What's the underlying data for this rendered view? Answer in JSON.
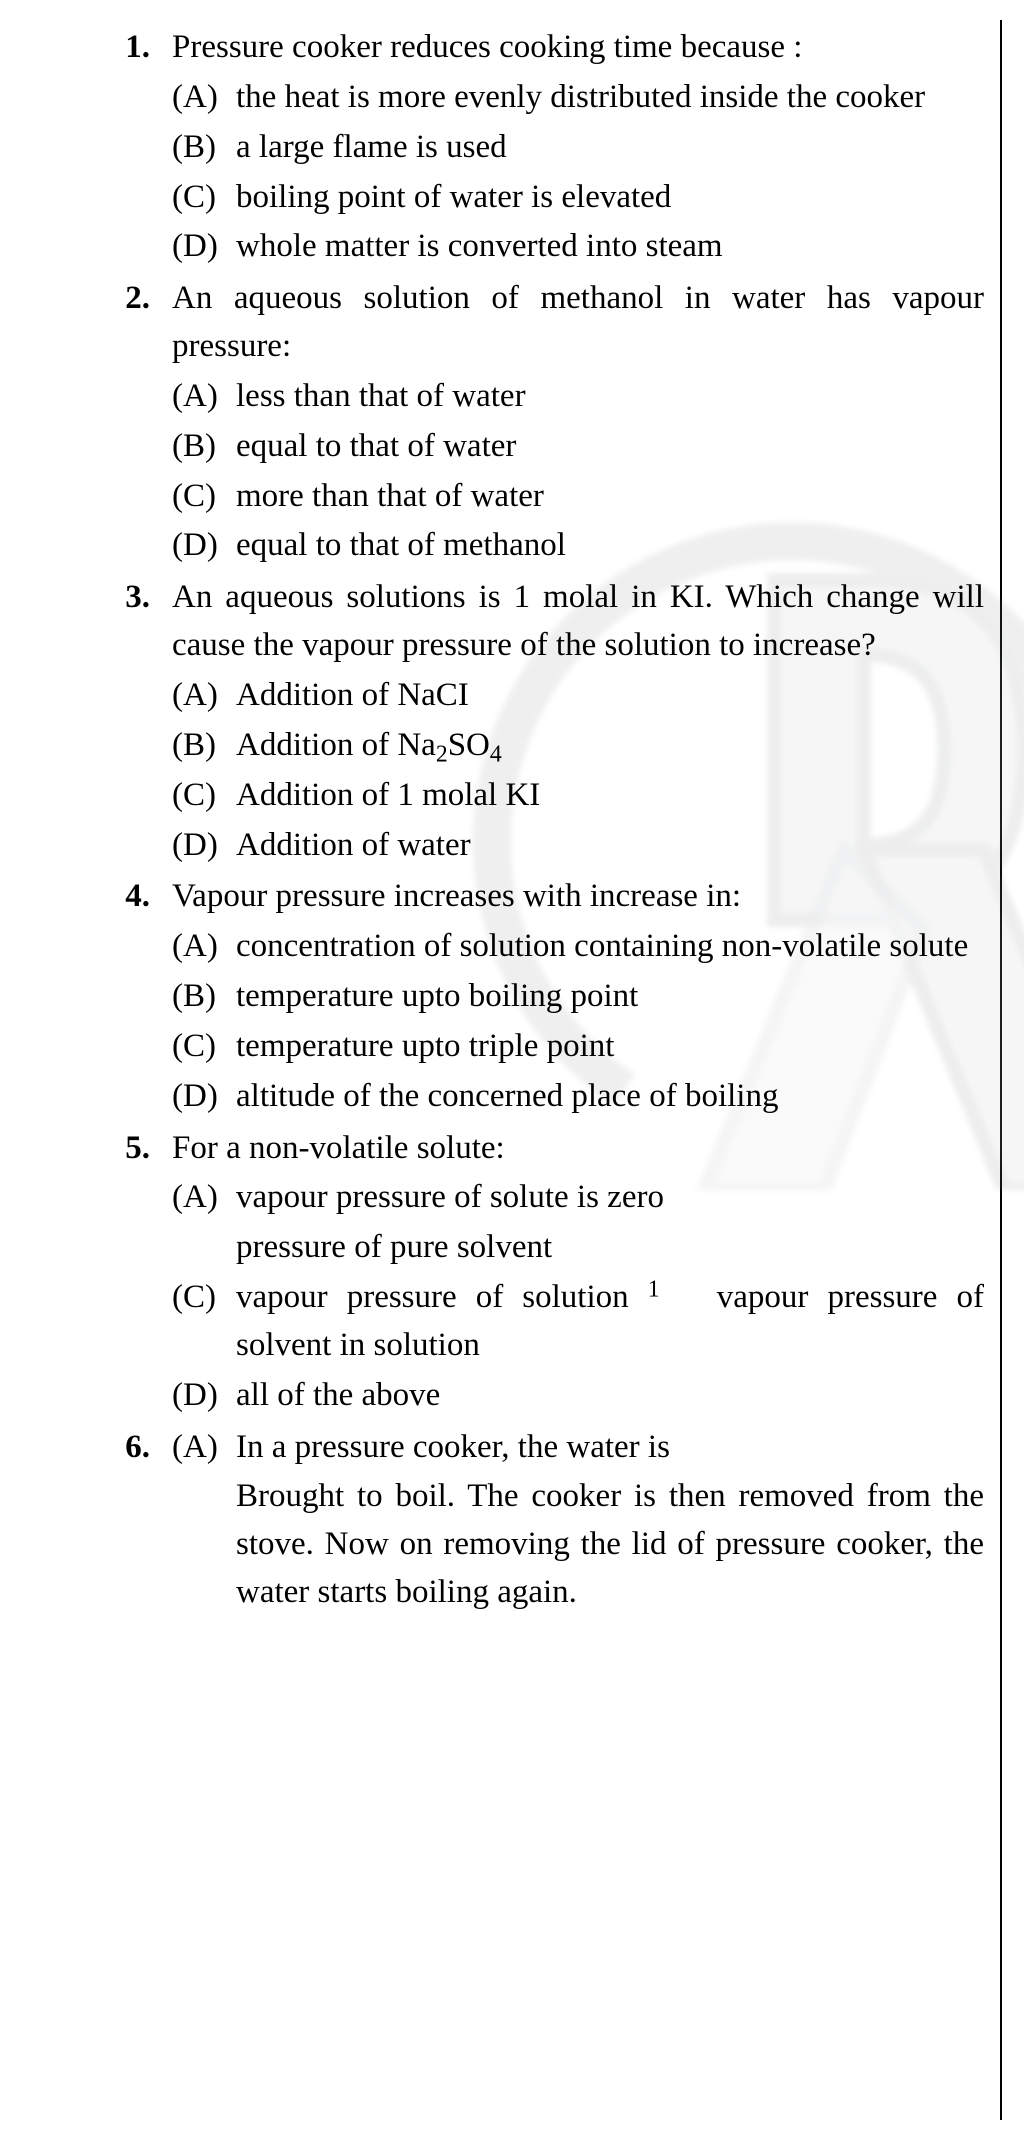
{
  "watermark": {
    "stroke": "#8a8f95",
    "fill_light": "#c6cacf"
  },
  "questions": [
    {
      "num": "1.",
      "stem": "Pressure cooker reduces cooking time because :",
      "options": [
        {
          "label": "(A)",
          "text": "the heat is more evenly distributed inside the cooker"
        },
        {
          "label": "(B)",
          "text": "a large flame is used"
        },
        {
          "label": "(C)",
          "text": "boiling point of water is elevated"
        },
        {
          "label": "(D)",
          "text": "whole matter is converted into steam"
        }
      ]
    },
    {
      "num": "2.",
      "stem": "An aqueous solution of methanol in water has vapour pressure:",
      "options": [
        {
          "label": "(A)",
          "text": "less than that of water"
        },
        {
          "label": "(B)",
          "text": "equal to that of water"
        },
        {
          "label": "(C)",
          "text": "more than that of water"
        },
        {
          "label": "(D)",
          "text": "equal to that of methanol"
        }
      ]
    },
    {
      "num": "3.",
      "stem": "An aqueous solutions is 1 molal in KI. Which change will cause the vapour pressure of the solution to increase?",
      "options": [
        {
          "label": "(A)",
          "text": "Addition of NaCI"
        },
        {
          "label": "(B)",
          "html": "Addition of Na<sub>2</sub>SO<sub>4</sub>"
        },
        {
          "label": "(C)",
          "text": "Addition of 1 molal KI"
        },
        {
          "label": "(D)",
          "text": "Addition of water"
        }
      ]
    },
    {
      "num": "4.",
      "stem": "Vapour pressure increases with increase in:",
      "options": [
        {
          "label": "(A)",
          "text": "concentration of solution containing non-volatile solute"
        },
        {
          "label": "(B)",
          "text": "temperature upto boiling point"
        },
        {
          "label": "(C)",
          "text": "temperature upto triple point"
        },
        {
          "label": "(D)",
          "text": "altitude of the concerned place of boiling"
        }
      ]
    },
    {
      "num": "5.",
      "stem": "For a non-volatile solute:",
      "options": [
        {
          "label": "(A)",
          "text": "vapour pressure of solute is zero"
        },
        {
          "label": "",
          "text": "pressure of pure solvent"
        },
        {
          "label": "(C)",
          "html": "vapour pressure of solution <sup>1</sup>   vapour pressure of solvent in solution"
        },
        {
          "label": "(D)",
          "text": "all of the above"
        }
      ]
    },
    {
      "num": "6.",
      "stem_label": "(A)",
      "stem_inline": "In a pressure cooker, the water is",
      "continuation": "Brought to boil. The cooker is then removed from the stove. Now on removing the lid of pressure cooker, the water starts boiling again."
    }
  ]
}
